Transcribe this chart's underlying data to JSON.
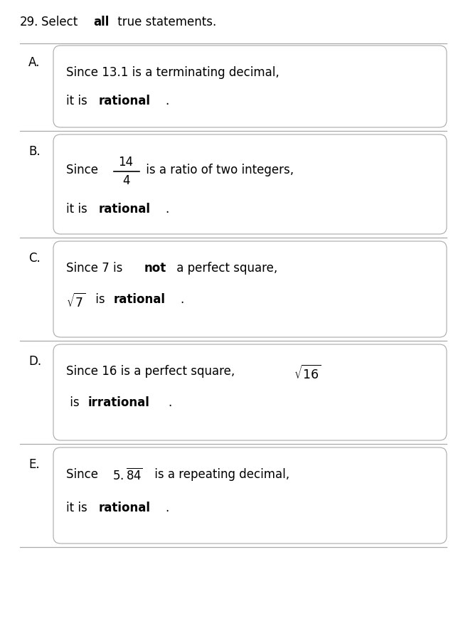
{
  "background_color": "#ffffff",
  "text_color": "#000000",
  "box_edge_color": "#aaaaaa",
  "separator_color": "#aaaaaa",
  "question_number": "29.",
  "question_intro": "Select ",
  "question_bold": "all",
  "question_end": " true statements.",
  "labels": [
    "A.",
    "B.",
    "C.",
    "D.",
    "E."
  ],
  "font_size": 12,
  "fig_width": 6.51,
  "fig_height": 8.95,
  "dpi": 100
}
